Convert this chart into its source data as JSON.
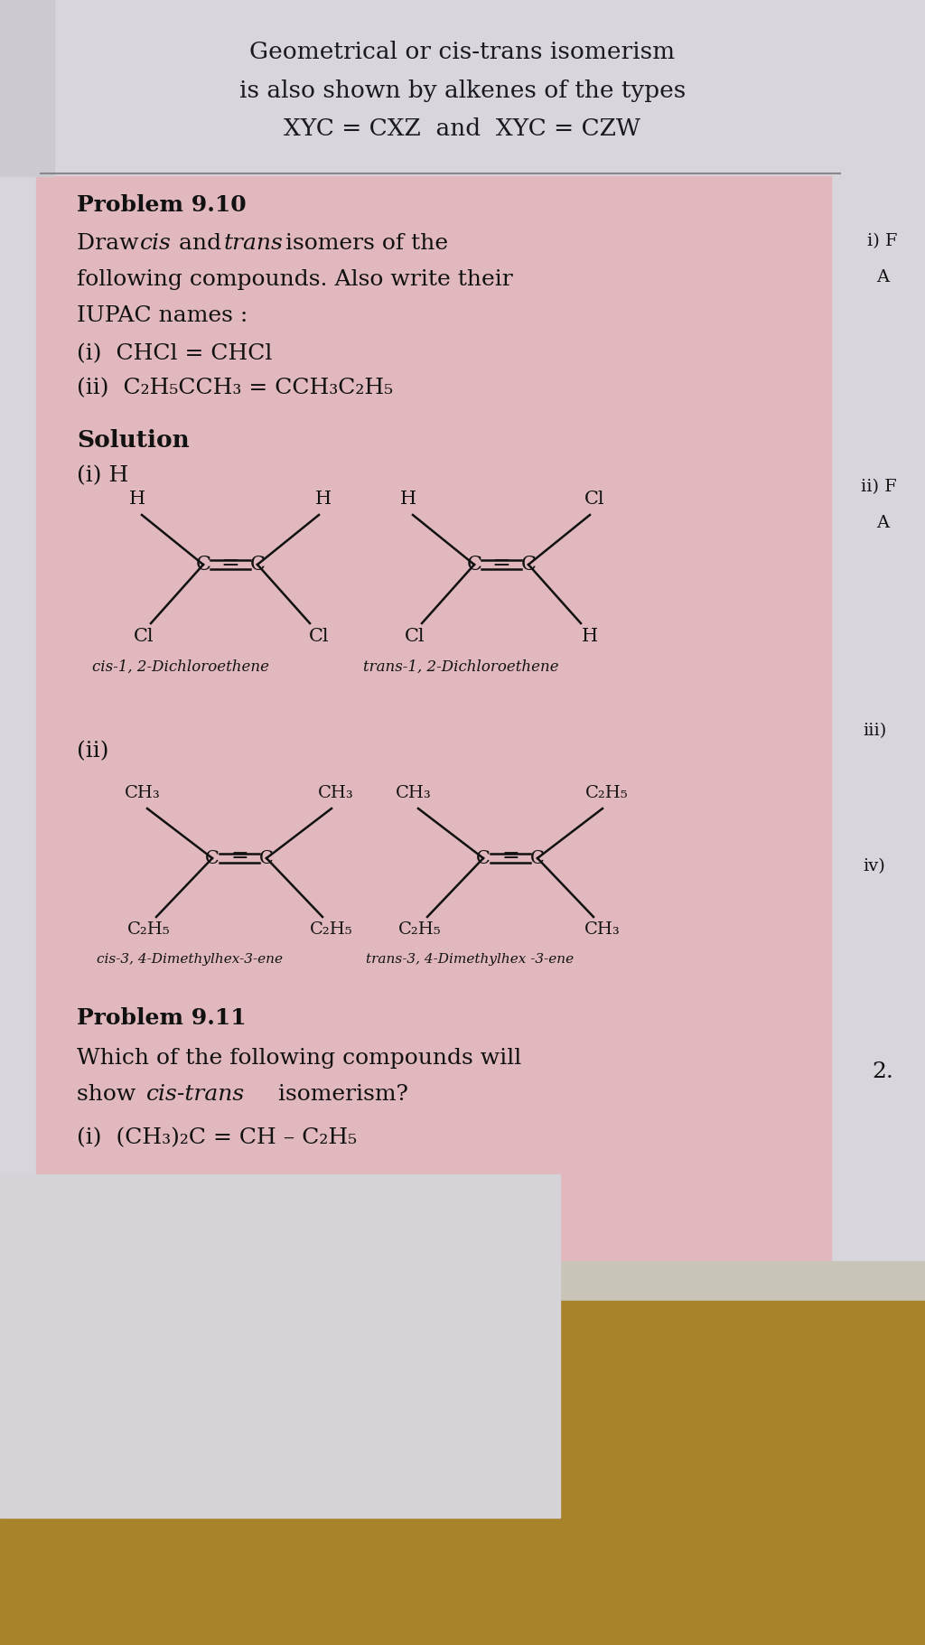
{
  "bg_cream": "#dcdae0",
  "bg_pink": "#e8c8cc",
  "bg_white_top": "#d8d6de",
  "text_dark": "#1a1820",
  "title_line1": "Geometrical or cis-trans isomerism",
  "title_line2": "is also shown by alkenes of the types",
  "title_line3": "XYC = CXZ  and  XYC = CZW",
  "prob910": "Problem 9.10",
  "draw_line1": "Draw cis and trans isomers of the",
  "draw_cis": "cis",
  "draw_trans": "trans",
  "draw_line2": "following compounds. Also write their",
  "draw_line3": "IUPAC names :",
  "item_i_text": "(i)  CHCl = CHCl",
  "item_ii_text": "(ii)  C₂H₅CCH₃ = CCH₃C₂H₅",
  "solution": "Solution",
  "cis_label_1": "cis-1, 2-Dichloroethene",
  "trans_label_1": "trans-1, 2-Dichloroethene",
  "cis_label_2": "cis-3, 4-Dimethylhex-3-ene",
  "trans_label_2": "trans-3, 4-Dimethylhex -3-ene",
  "prob911": "Problem 9.11",
  "which_line1": "Which of the following compounds will",
  "which_line2": "show cis-trans isomerism?",
  "item_i_911": "(i)  (CH₃)₂C = CH – C₂H₅",
  "right_i_F": "i) F",
  "right_A1": "A",
  "right_ii_F": "ii) F",
  "right_A2": "A",
  "right_iii": "iii)",
  "right_iv": "iv)",
  "right_2": "2."
}
